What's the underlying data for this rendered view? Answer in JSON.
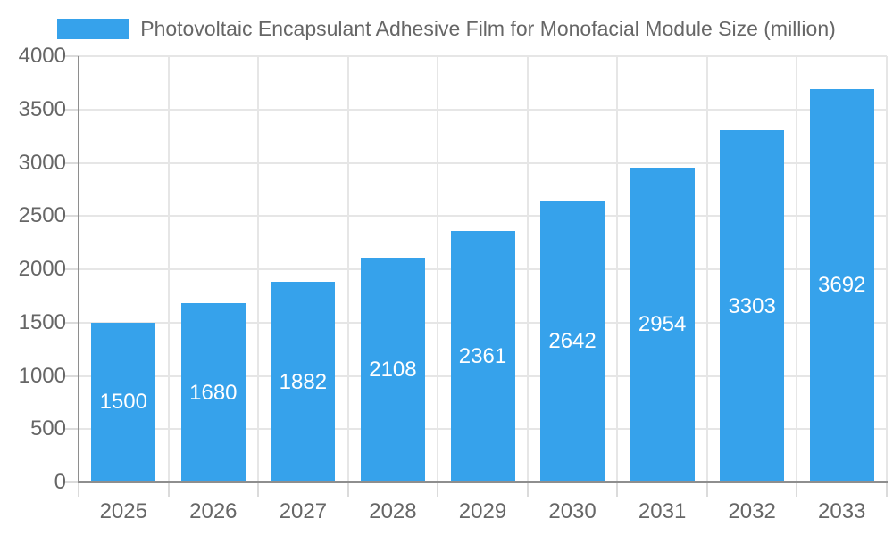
{
  "chart_data": {
    "type": "bar",
    "title": "Photovoltaic Encapsulant Adhesive Film for Monofacial Module Size (million)",
    "categories": [
      "2025",
      "2026",
      "2027",
      "2028",
      "2029",
      "2030",
      "2031",
      "2032",
      "2033"
    ],
    "values": [
      1500,
      1680,
      1882,
      2108,
      2361,
      2642,
      2954,
      3303,
      3692
    ],
    "xlabel": "",
    "ylabel": "",
    "ylim": [
      0,
      4000
    ],
    "ytick_step": 500,
    "yticks": [
      0,
      500,
      1000,
      1500,
      2000,
      2500,
      3000,
      3500,
      4000
    ],
    "grid": true,
    "legend_position": "top",
    "value_labels_position": "center-of-bar",
    "colors": {
      "bar": "#36A2EB",
      "bar_value_label": "#FFFFFF",
      "axis_text": "#666666",
      "gridline": "#E6E6E6",
      "tick": "#DBDBDB",
      "axis_line": "#8E8E8E",
      "background": "#FFFFFF"
    }
  }
}
